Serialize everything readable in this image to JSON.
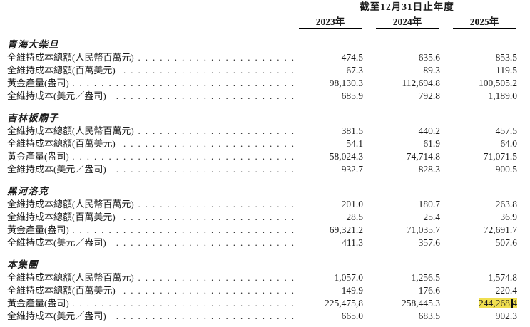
{
  "highlight_color": "#f0df50",
  "table": {
    "period_header": "截至12月31日止年度",
    "years": [
      "2023年",
      "2024年",
      "2025年"
    ],
    "sections": [
      {
        "name": "青海大柴旦",
        "rows": [
          {
            "label": "全維持成本總額(人民幣百萬元)",
            "values": [
              "474.5",
              "635.6",
              "853.5"
            ]
          },
          {
            "label": "全維持成本總額(百萬美元)",
            "values": [
              "67.3",
              "89.3",
              "119.5"
            ]
          },
          {
            "label": "黃金產量(盎司)",
            "values": [
              "98,130.3",
              "112,694.8",
              "100,505.2"
            ]
          },
          {
            "label": "全維持成本(美元／盎司)",
            "values": [
              "685.9",
              "792.8",
              "1,189.0"
            ]
          }
        ]
      },
      {
        "name": "吉林板廟子",
        "rows": [
          {
            "label": "全維持成本總額(人民幣百萬元)",
            "values": [
              "381.5",
              "440.2",
              "457.5"
            ]
          },
          {
            "label": "全維持成本總額(百萬美元)",
            "values": [
              "54.1",
              "61.9",
              "64.0"
            ]
          },
          {
            "label": "黃金產量(盎司)",
            "values": [
              "58,024.3",
              "74,714.8",
              "71,071.5"
            ]
          },
          {
            "label": "全維持成本(美元／盎司)",
            "values": [
              "932.7",
              "828.3",
              "900.5"
            ]
          }
        ]
      },
      {
        "name": "黑河洛克",
        "rows": [
          {
            "label": "全維持成本總額(人民幣百萬元)",
            "values": [
              "201.0",
              "180.7",
              "263.8"
            ]
          },
          {
            "label": "全維持成本總額(百萬美元)",
            "values": [
              "28.5",
              "25.4",
              "36.9"
            ]
          },
          {
            "label": "黃金產量(盎司)",
            "values": [
              "69,321.2",
              "71,035.7",
              "72,691.7"
            ]
          },
          {
            "label": "全維持成本(美元／盎司)",
            "values": [
              "411.3",
              "357.6",
              "507.6"
            ]
          }
        ]
      },
      {
        "name": "本集團",
        "rows": [
          {
            "label": "全維持成本總額(人民幣百萬元)",
            "values": [
              "1,057.0",
              "1,256.5",
              "1,574.8"
            ]
          },
          {
            "label": "全維持成本總額(百萬美元)",
            "values": [
              "149.9",
              "176.6",
              "220.4"
            ]
          },
          {
            "label": "黃金產量(盎司)",
            "values": [
              "225,475,8",
              "258,445.3",
              "244,268.4"
            ]
          },
          {
            "label": "全維持成本(美元／盎司)",
            "values": [
              "665.0",
              "683.5",
              "902.3"
            ]
          }
        ]
      }
    ]
  }
}
